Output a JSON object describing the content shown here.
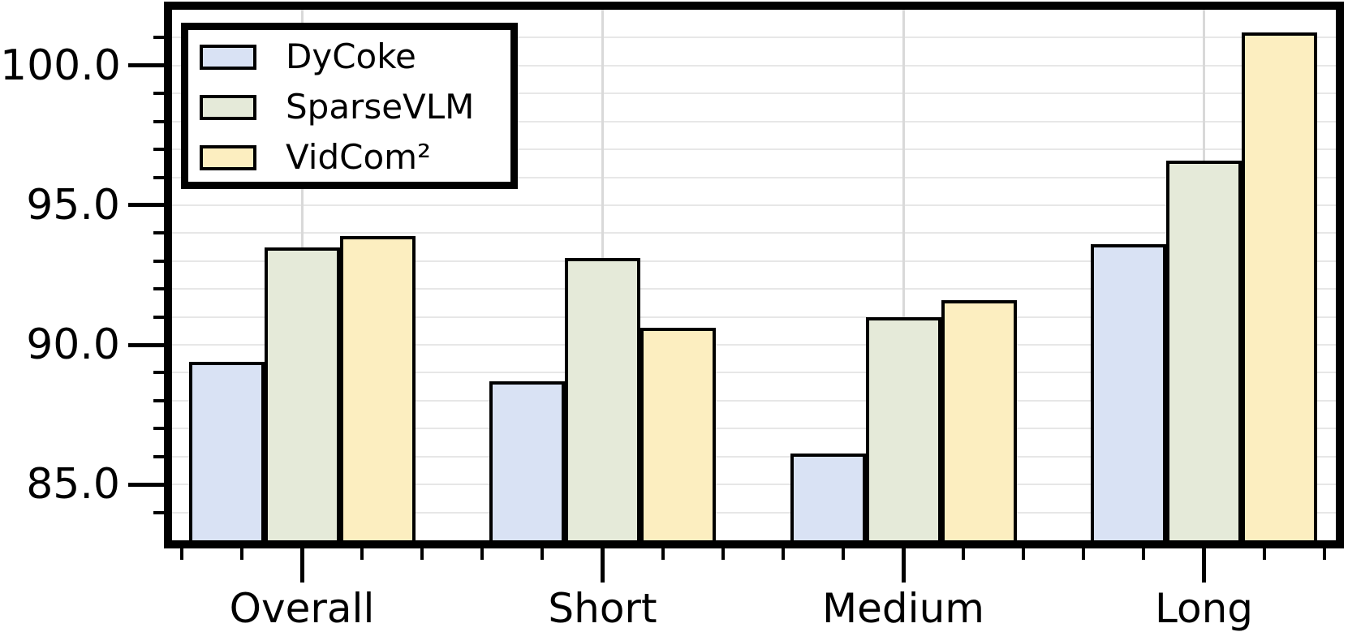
{
  "chart_data": {
    "type": "bar",
    "title": "",
    "xlabel": "",
    "ylabel": "",
    "categories": [
      "Overall",
      "Short",
      "Medium",
      "Long"
    ],
    "series": [
      {
        "name": "DyCoke",
        "color": "#d9e2f4",
        "values": [
          89.4,
          88.7,
          86.1,
          93.6
        ]
      },
      {
        "name": "SparseVLM",
        "color": "#e5ead9",
        "values": [
          93.5,
          93.1,
          91.0,
          96.6
        ]
      },
      {
        "name": "VidCom²",
        "color": "#fceec0",
        "values": [
          93.9,
          90.6,
          91.6,
          101.2
        ]
      }
    ],
    "ylim": [
      83.0,
      102.0
    ],
    "yticks_major": [
      {
        "value": 100.0,
        "label": "100.0"
      },
      {
        "value": 95.0,
        "label": "95.0"
      },
      {
        "value": 90.0,
        "label": "90.0"
      },
      {
        "value": 85.0,
        "label": "85.0"
      }
    ],
    "y_minor_step": 1.0,
    "x_minor_step": 0.2,
    "grid": {
      "horizontal_minor": true,
      "vertical_major": true
    },
    "legend_position": "upper left",
    "bar_edge_color": "#000000",
    "grid_color_horizontal": "#e7e7e7",
    "grid_color_vertical": "#d9d9d9"
  }
}
